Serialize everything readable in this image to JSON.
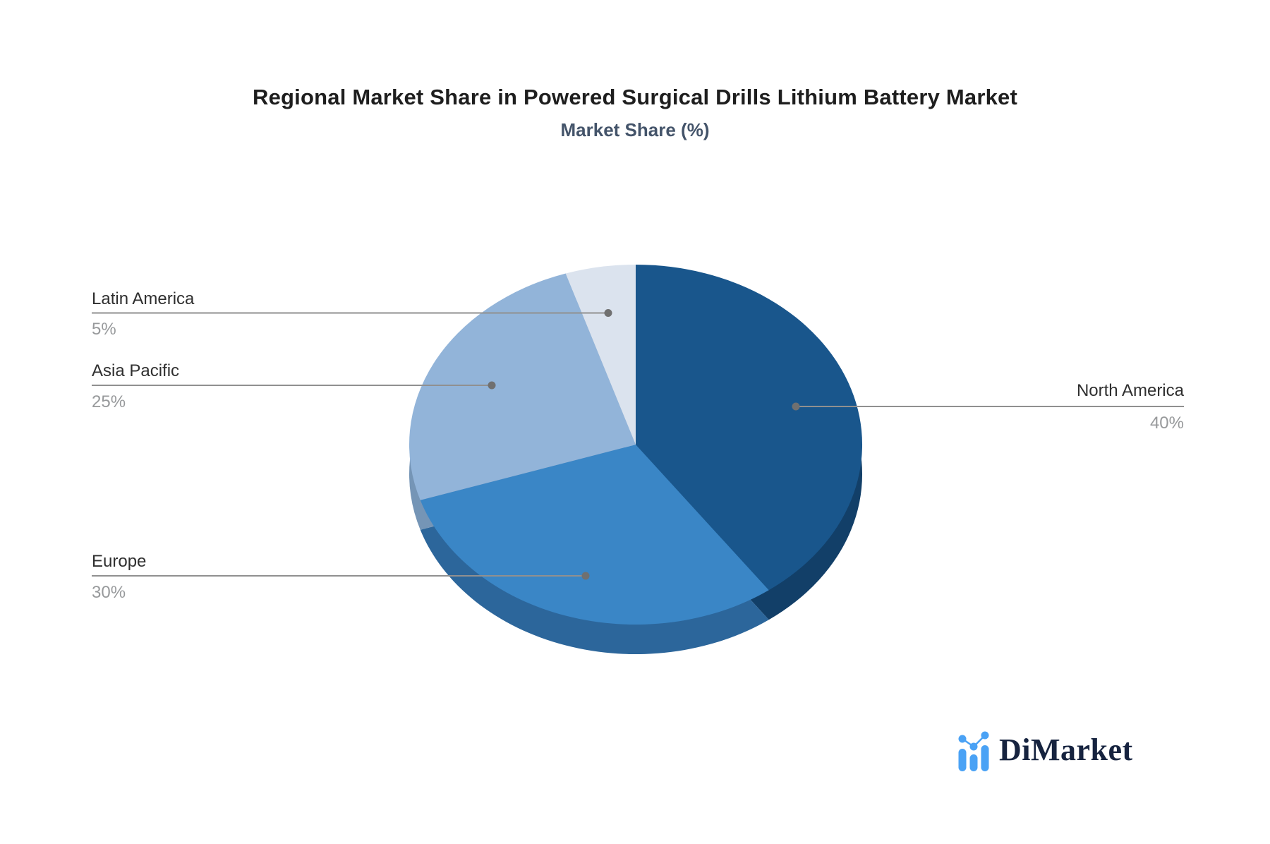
{
  "title": "Regional Market Share in Powered Surgical Drills Lithium Battery Market",
  "subtitle": "Market Share (%)",
  "chart_data": {
    "type": "pie",
    "title": "Regional Market Share in Powered Surgical Drills Lithium Battery Market",
    "subtitle": "Market Share (%)",
    "unit": "%",
    "style": "3d-pie",
    "start_angle_deg": 0,
    "direction": "clockwise",
    "slices": [
      {
        "id": "north-america",
        "name": "North America",
        "value": 40,
        "pct_label": "40%",
        "color": "#19568C",
        "side_color": "#123F68",
        "label_side": "right"
      },
      {
        "id": "europe",
        "name": "Europe",
        "value": 30,
        "pct_label": "30%",
        "color": "#3A86C6",
        "side_color": "#2C669B",
        "label_side": "left"
      },
      {
        "id": "asia-pacific",
        "name": "Asia Pacific",
        "value": 25,
        "pct_label": "25%",
        "color": "#92B4D9",
        "side_color": "#7595B6",
        "label_side": "left"
      },
      {
        "id": "latin-america",
        "name": "Latin America",
        "value": 5,
        "pct_label": "5%",
        "color": "#DBE3EE",
        "side_color": "#B9C6D8",
        "label_side": "left"
      }
    ]
  },
  "callout_style": {
    "line_color": "#909090",
    "dot_color": "#707070",
    "name_color": "#2F2F2F",
    "pct_color": "#97999B"
  },
  "brand": {
    "name": "DiMarket",
    "icon": "dimarket-bars-logo",
    "icon_color": "#4AA2F5",
    "text_color": "#16233F"
  }
}
